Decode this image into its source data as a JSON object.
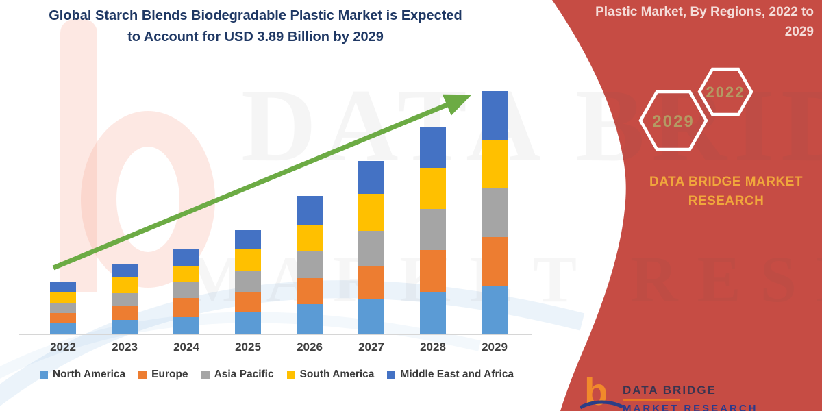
{
  "title": {
    "line1": "Global Starch Blends Biodegradable Plastic Market is Expected",
    "line2": "to Account for USD 3.89 Billion by 2029"
  },
  "header_right": {
    "line1": "Plastic Market, By Regions, 2022 to",
    "line2": "2029"
  },
  "brand_panel": {
    "hexagon_back_label": "2029",
    "hexagon_front_label": "2022",
    "brand_line1": "DATA BRIDGE MARKET",
    "brand_line2": "RESEARCH"
  },
  "footer_logo": {
    "b_glyph": "b",
    "name": "DATA BRIDGE",
    "cropped_line": "MARKET RESEARCH"
  },
  "watermark": {
    "text1": "DATA BRIDGE",
    "text2": "MARKET RESEARCH"
  },
  "colors": {
    "red_band": "#C64C44",
    "title_text": "#1F3864",
    "header_text": "#F4DCD8",
    "hexagon_outline": "#FFFFFF",
    "hexagon_text": "#B49A63",
    "brand_text": "#F0A73C",
    "arrow": "#6CAB44",
    "axis_line": "#D6D6D6",
    "axis_label": "#3F3F3F",
    "legend_text": "#3A3A3A",
    "watermark_pink": "rgba(246,166,148,0.26)",
    "watermark_gray": "rgba(80,80,80,0.06)",
    "watermark_gray2": "rgba(80,80,80,0.05)",
    "watermark_blue": "rgba(91,155,213,0.12)",
    "footer_b": "#F18A2B",
    "footer_name": "#3A3450",
    "footer_underline": "#E87722",
    "footer_cropped": "#2B3A8C",
    "series_north_america": "#5B9BD5",
    "series_europe": "#ED7D31",
    "series_asia_pacific": "#A5A5A5",
    "series_south_america": "#FFC000",
    "series_middle_east_africa": "#4472C4"
  },
  "chart_data": {
    "type": "bar",
    "stacked": true,
    "title": "Global Starch Blends Biodegradable Plastic Market is Expected to Account for USD 3.89 Billion by 2029",
    "unit": "USD Billion (estimated from bar proportions; chart shows no value axis)",
    "categories": [
      "2022",
      "2023",
      "2024",
      "2025",
      "2026",
      "2027",
      "2028",
      "2029"
    ],
    "series": [
      {
        "name": "North America",
        "color": "#5B9BD5",
        "values": [
          0.17,
          0.22,
          0.27,
          0.35,
          0.48,
          0.55,
          0.66,
          0.77
        ]
      },
      {
        "name": "Europe",
        "color": "#ED7D31",
        "values": [
          0.17,
          0.22,
          0.31,
          0.31,
          0.42,
          0.54,
          0.68,
          0.78
        ]
      },
      {
        "name": "Asia Pacific",
        "color": "#A5A5A5",
        "values": [
          0.17,
          0.21,
          0.26,
          0.35,
          0.44,
          0.56,
          0.66,
          0.78
        ]
      },
      {
        "name": "South America",
        "color": "#FFC000",
        "values": [
          0.17,
          0.25,
          0.25,
          0.35,
          0.42,
          0.6,
          0.66,
          0.78
        ]
      },
      {
        "name": "Middle East and Africa",
        "color": "#4472C4",
        "values": [
          0.17,
          0.22,
          0.28,
          0.3,
          0.46,
          0.53,
          0.65,
          0.78
        ]
      }
    ],
    "totals": [
      0.85,
      1.12,
      1.37,
      1.66,
      2.22,
      2.78,
      3.31,
      3.89
    ],
    "ylim": [
      0,
      4.3
    ],
    "y_axis_visible": false,
    "gridlines": false,
    "legend_position": "bottom",
    "annotations": [
      "green upward trend arrow spanning from the 2022 bar to the 2029 bar"
    ]
  }
}
